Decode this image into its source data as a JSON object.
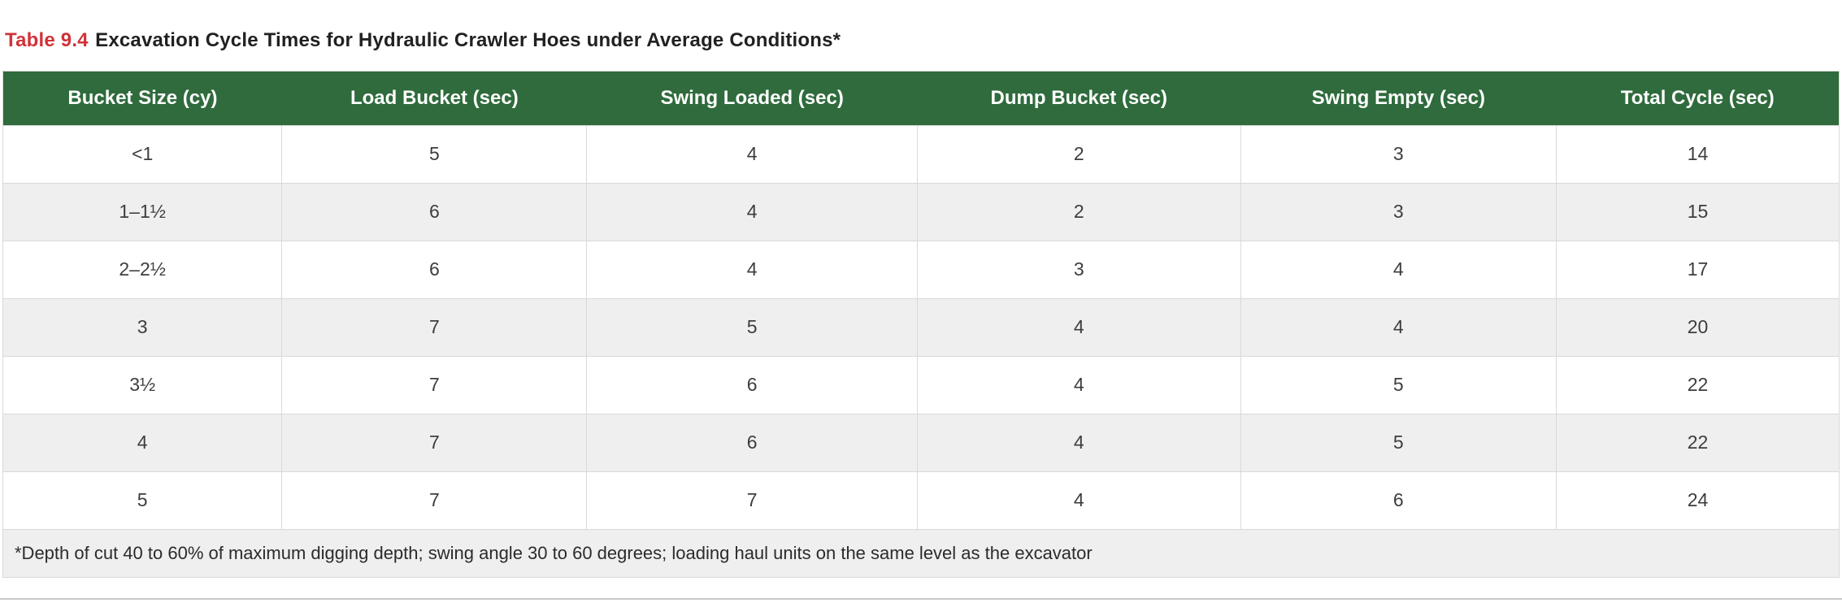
{
  "page": {
    "title_label": "Table 9.4",
    "title_text": "Excavation Cycle Times for Hydraulic Crawler Hoes under Average Conditions*"
  },
  "table": {
    "columns": [
      "Bucket Size (cy)",
      "Load Bucket (sec)",
      "Swing Loaded (sec)",
      "Dump Bucket (sec)",
      "Swing Empty (sec)",
      "Total Cycle (sec)"
    ],
    "rows": [
      [
        "<1",
        "5",
        "4",
        "2",
        "3",
        "14"
      ],
      [
        "1–1½",
        "6",
        "4",
        "2",
        "3",
        "15"
      ],
      [
        "2–2½",
        "6",
        "4",
        "3",
        "4",
        "17"
      ],
      [
        "3",
        "7",
        "5",
        "4",
        "4",
        "20"
      ],
      [
        "3½",
        "7",
        "6",
        "4",
        "5",
        "22"
      ],
      [
        "4",
        "7",
        "6",
        "4",
        "5",
        "22"
      ],
      [
        "5",
        "7",
        "7",
        "4",
        "6",
        "24"
      ]
    ],
    "footnote": "*Depth of cut 40 to 60% of maximum digging depth; swing angle 30 to 60 degrees; loading haul units on the same level as the excavator"
  },
  "chart_data": {
    "type": "table",
    "title": "Table 9.4 Excavation Cycle Times for Hydraulic Crawler Hoes under Average Conditions*",
    "categories": [
      "Bucket Size (cy)",
      "Load Bucket (sec)",
      "Swing Loaded (sec)",
      "Dump Bucket (sec)",
      "Swing Empty (sec)",
      "Total Cycle (sec)"
    ],
    "series": [
      {
        "name": "<1",
        "values": [
          5,
          4,
          2,
          3,
          14
        ]
      },
      {
        "name": "1–1½",
        "values": [
          6,
          4,
          2,
          3,
          15
        ]
      },
      {
        "name": "2–2½",
        "values": [
          6,
          4,
          3,
          4,
          17
        ]
      },
      {
        "name": "3",
        "values": [
          7,
          5,
          4,
          4,
          20
        ]
      },
      {
        "name": "3½",
        "values": [
          7,
          6,
          4,
          5,
          22
        ]
      },
      {
        "name": "4",
        "values": [
          7,
          6,
          4,
          5,
          22
        ]
      },
      {
        "name": "5",
        "values": [
          7,
          7,
          4,
          6,
          24
        ]
      }
    ]
  },
  "colors": {
    "header_bg": "#2f6b3c",
    "title_accent": "#d13239",
    "row_alt_bg": "#efefef"
  }
}
